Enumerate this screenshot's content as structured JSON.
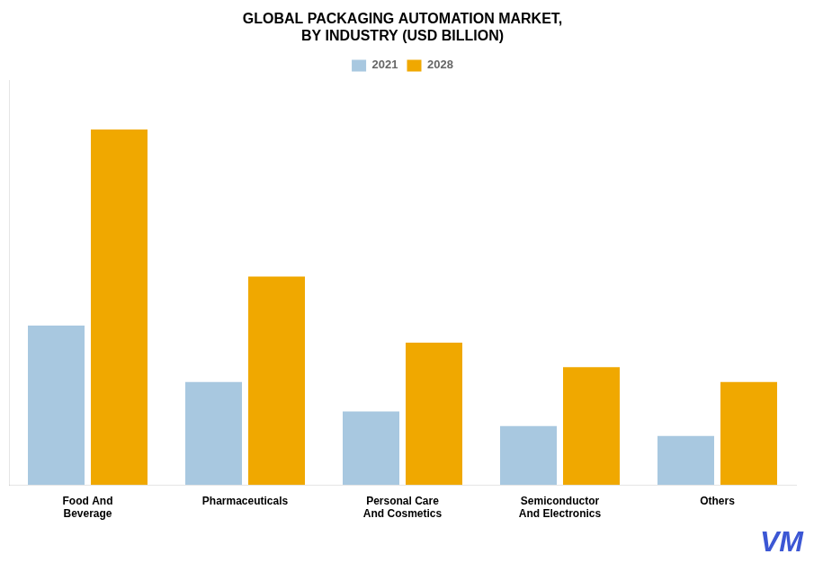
{
  "chart_data": {
    "type": "bar",
    "title": "GLOBAL PACKAGING AUTOMATION MARKET,\nBY INDUSTRY (USD BILLION)",
    "categories": [
      "Food And\nBeverage",
      "Pharmaceuticals",
      "Personal Care\nAnd Cosmetics",
      "Semiconductor\nAnd Electronics",
      "Others"
    ],
    "series": [
      {
        "name": "2021",
        "color": "#A8C8E0",
        "values": [
          6.5,
          4.2,
          3.0,
          2.4,
          2.0
        ]
      },
      {
        "name": "2028",
        "color": "#F0A800",
        "values": [
          14.5,
          8.5,
          5.8,
          4.8,
          4.2
        ]
      }
    ],
    "ylim": [
      0,
      16.5
    ],
    "tick_labels": "x",
    "grid": false,
    "legend": "top",
    "annotations": [
      {
        "text": "VM",
        "color": "#1a3acc"
      }
    ]
  }
}
